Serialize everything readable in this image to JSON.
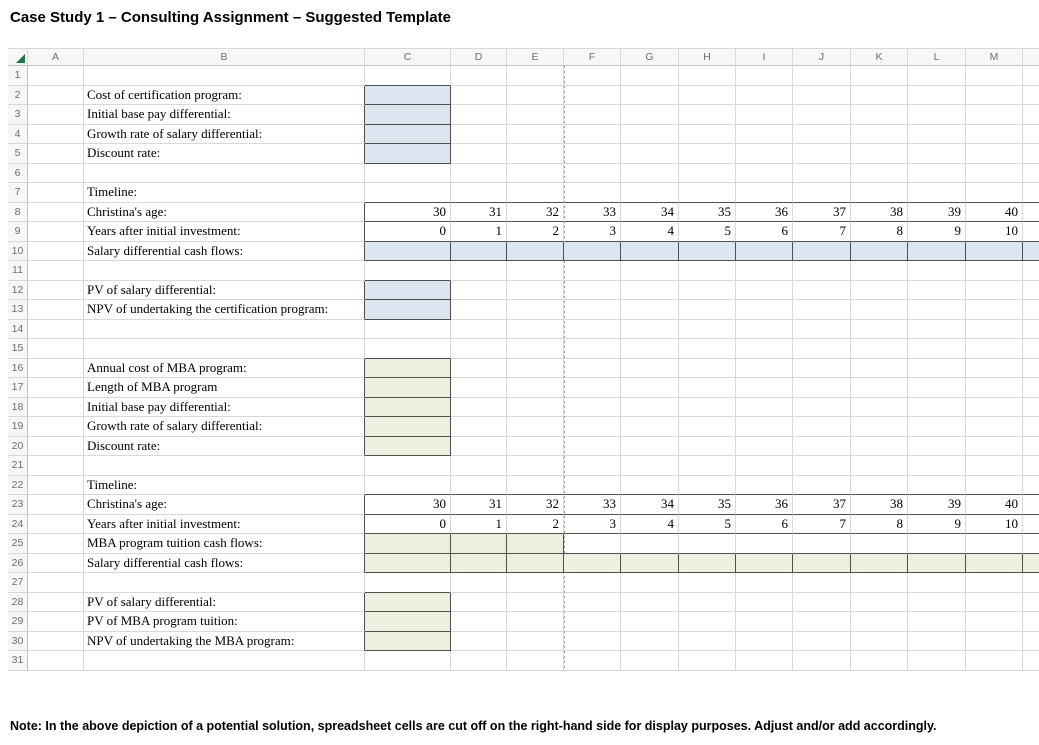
{
  "title": "Case Study 1 – Consulting Assignment – Suggested Template",
  "footnote": "Note: In the above depiction of a potential solution, spreadsheet cells are cut off on the right-hand side for display purposes. Adjust and/or add accordingly.",
  "colors": {
    "blue_fill": "#dce6f1",
    "green_fill": "#ebf1de",
    "dark_border": "#4f4f4f",
    "gridline": "#d8d8d8",
    "header_text": "#6e6e6e",
    "select_all_green": "#217346",
    "page_break_gray": "#9a9a9a"
  },
  "sheet": {
    "column_headers": [
      "A",
      "B",
      "C",
      "D",
      "E",
      "F",
      "G",
      "H",
      "I",
      "J",
      "K",
      "L",
      "M"
    ],
    "rows": [
      {
        "n": 1,
        "cells": {
          "C": {
            "b": "b"
          }
        }
      },
      {
        "n": 2,
        "label": "Cost of certification program:",
        "cells": {
          "B": {
            "b": "r"
          },
          "C": {
            "f": "blue",
            "b": "rb"
          }
        }
      },
      {
        "n": 3,
        "label": "Initial base pay differential:",
        "cells": {
          "B": {
            "b": "r"
          },
          "C": {
            "f": "blue",
            "b": "rb"
          }
        }
      },
      {
        "n": 4,
        "label": "Growth rate of salary differential:",
        "cells": {
          "B": {
            "b": "r"
          },
          "C": {
            "f": "blue",
            "b": "rb"
          }
        }
      },
      {
        "n": 5,
        "label": "Discount rate:",
        "cells": {
          "B": {
            "b": "r"
          },
          "C": {
            "f": "blue",
            "b": "rb"
          }
        }
      },
      {
        "n": 6
      },
      {
        "n": 7,
        "label": "Timeline:",
        "cells": {
          "C": {
            "b": "b"
          },
          "D": {
            "b": "b"
          },
          "E": {
            "b": "b"
          },
          "F": {
            "b": "b"
          },
          "G": {
            "b": "b"
          },
          "H": {
            "b": "b"
          },
          "I": {
            "b": "b"
          },
          "J": {
            "b": "b"
          },
          "K": {
            "b": "b"
          },
          "L": {
            "b": "b"
          },
          "M": {
            "b": "b"
          },
          "N": {
            "b": "b"
          }
        }
      },
      {
        "n": 8,
        "label": "Christina's age:",
        "cells": {
          "B": {
            "b": "r"
          },
          "C": {
            "v": "30",
            "b": "b"
          },
          "D": {
            "v": "31",
            "b": "b"
          },
          "E": {
            "v": "32",
            "b": "b"
          },
          "F": {
            "v": "33",
            "b": "b"
          },
          "G": {
            "v": "34",
            "b": "b"
          },
          "H": {
            "v": "35",
            "b": "b"
          },
          "I": {
            "v": "36",
            "b": "b"
          },
          "J": {
            "v": "37",
            "b": "b"
          },
          "K": {
            "v": "38",
            "b": "b"
          },
          "L": {
            "v": "39",
            "b": "b"
          },
          "M": {
            "v": "40",
            "b": "b"
          },
          "N": {
            "b": "b"
          }
        }
      },
      {
        "n": 9,
        "label": "Years after initial investment:",
        "cells": {
          "B": {
            "b": "r"
          },
          "C": {
            "v": "0",
            "b": "b"
          },
          "D": {
            "v": "1",
            "b": "b"
          },
          "E": {
            "v": "2",
            "b": "b"
          },
          "F": {
            "v": "3",
            "b": "b"
          },
          "G": {
            "v": "4",
            "b": "b"
          },
          "H": {
            "v": "5",
            "b": "b"
          },
          "I": {
            "v": "6",
            "b": "b"
          },
          "J": {
            "v": "7",
            "b": "b"
          },
          "K": {
            "v": "8",
            "b": "b"
          },
          "L": {
            "v": "9",
            "b": "b"
          },
          "M": {
            "v": "10",
            "b": "b"
          },
          "N": {
            "b": "b"
          }
        }
      },
      {
        "n": 10,
        "label": "Salary differential cash flows:",
        "cells": {
          "B": {
            "b": "r"
          },
          "C": {
            "f": "blue",
            "b": "rb"
          },
          "D": {
            "f": "blue",
            "b": "rb"
          },
          "E": {
            "f": "blue",
            "b": "rb"
          },
          "F": {
            "f": "blue",
            "b": "rb"
          },
          "G": {
            "f": "blue",
            "b": "rb"
          },
          "H": {
            "f": "blue",
            "b": "rb"
          },
          "I": {
            "f": "blue",
            "b": "rb"
          },
          "J": {
            "f": "blue",
            "b": "rb"
          },
          "K": {
            "f": "blue",
            "b": "rb"
          },
          "L": {
            "f": "blue",
            "b": "rb"
          },
          "M": {
            "f": "blue",
            "b": "rb"
          },
          "N": {
            "f": "blue",
            "b": "rb"
          }
        }
      },
      {
        "n": 11,
        "cells": {
          "C": {
            "b": "b"
          }
        }
      },
      {
        "n": 12,
        "label": "PV of salary differential:",
        "cells": {
          "B": {
            "b": "r"
          },
          "C": {
            "f": "blue",
            "b": "rb"
          }
        }
      },
      {
        "n": 13,
        "label": "NPV of undertaking the certification program:",
        "cells": {
          "B": {
            "b": "r"
          },
          "C": {
            "f": "blue",
            "b": "rb"
          }
        }
      },
      {
        "n": 14
      },
      {
        "n": 15,
        "cells": {
          "C": {
            "b": "b"
          }
        }
      },
      {
        "n": 16,
        "label": "Annual cost of MBA program:",
        "cells": {
          "B": {
            "b": "r"
          },
          "C": {
            "f": "green",
            "b": "rb"
          }
        }
      },
      {
        "n": 17,
        "label": "Length of MBA program",
        "cells": {
          "B": {
            "b": "r"
          },
          "C": {
            "f": "green",
            "b": "rb"
          }
        }
      },
      {
        "n": 18,
        "label": "Initial base pay differential:",
        "cells": {
          "B": {
            "b": "r"
          },
          "C": {
            "f": "green",
            "b": "rb"
          }
        }
      },
      {
        "n": 19,
        "label": "Growth rate of salary differential:",
        "cells": {
          "B": {
            "b": "r"
          },
          "C": {
            "f": "green",
            "b": "rb"
          }
        }
      },
      {
        "n": 20,
        "label": "Discount rate:",
        "cells": {
          "B": {
            "b": "r"
          },
          "C": {
            "f": "green",
            "b": "rb"
          }
        }
      },
      {
        "n": 21
      },
      {
        "n": 22,
        "label": "Timeline:",
        "cells": {
          "C": {
            "b": "b"
          },
          "D": {
            "b": "b"
          },
          "E": {
            "b": "b"
          },
          "F": {
            "b": "b"
          },
          "G": {
            "b": "b"
          },
          "H": {
            "b": "b"
          },
          "I": {
            "b": "b"
          },
          "J": {
            "b": "b"
          },
          "K": {
            "b": "b"
          },
          "L": {
            "b": "b"
          },
          "M": {
            "b": "b"
          },
          "N": {
            "b": "b"
          }
        }
      },
      {
        "n": 23,
        "label": "Christina's age:",
        "cells": {
          "B": {
            "b": "r"
          },
          "C": {
            "v": "30",
            "b": "b"
          },
          "D": {
            "v": "31",
            "b": "b"
          },
          "E": {
            "v": "32",
            "b": "b"
          },
          "F": {
            "v": "33",
            "b": "b"
          },
          "G": {
            "v": "34",
            "b": "b"
          },
          "H": {
            "v": "35",
            "b": "b"
          },
          "I": {
            "v": "36",
            "b": "b"
          },
          "J": {
            "v": "37",
            "b": "b"
          },
          "K": {
            "v": "38",
            "b": "b"
          },
          "L": {
            "v": "39",
            "b": "b"
          },
          "M": {
            "v": "40",
            "b": "b"
          },
          "N": {
            "b": "b"
          }
        }
      },
      {
        "n": 24,
        "label": "Years after initial investment:",
        "cells": {
          "B": {
            "b": "r"
          },
          "C": {
            "v": "0",
            "b": "b"
          },
          "D": {
            "v": "1",
            "b": "b"
          },
          "E": {
            "v": "2",
            "b": "b"
          },
          "F": {
            "v": "3",
            "b": "b"
          },
          "G": {
            "v": "4",
            "b": "b"
          },
          "H": {
            "v": "5",
            "b": "b"
          },
          "I": {
            "v": "6",
            "b": "b"
          },
          "J": {
            "v": "7",
            "b": "b"
          },
          "K": {
            "v": "8",
            "b": "b"
          },
          "L": {
            "v": "9",
            "b": "b"
          },
          "M": {
            "v": "10",
            "b": "b"
          },
          "N": {
            "b": "b"
          }
        }
      },
      {
        "n": 25,
        "label": "MBA program tuition cash flows:",
        "cells": {
          "B": {
            "b": "r"
          },
          "C": {
            "f": "green",
            "b": "rb"
          },
          "D": {
            "f": "green",
            "b": "rb"
          },
          "E": {
            "f": "green",
            "b": "rb"
          },
          "F": {
            "b": "b"
          },
          "G": {
            "b": "b"
          },
          "H": {
            "b": "b"
          },
          "I": {
            "b": "b"
          },
          "J": {
            "b": "b"
          },
          "K": {
            "b": "b"
          },
          "L": {
            "b": "b"
          },
          "M": {
            "b": "b"
          },
          "N": {
            "b": "b"
          }
        }
      },
      {
        "n": 26,
        "label": "Salary differential cash flows:",
        "cells": {
          "B": {
            "b": "r"
          },
          "C": {
            "f": "green",
            "b": "rb"
          },
          "D": {
            "f": "green",
            "b": "rb"
          },
          "E": {
            "f": "green",
            "b": "rb"
          },
          "F": {
            "f": "green",
            "b": "rb"
          },
          "G": {
            "f": "green",
            "b": "rb"
          },
          "H": {
            "f": "green",
            "b": "rb"
          },
          "I": {
            "f": "green",
            "b": "rb"
          },
          "J": {
            "f": "green",
            "b": "rb"
          },
          "K": {
            "f": "green",
            "b": "rb"
          },
          "L": {
            "f": "green",
            "b": "rb"
          },
          "M": {
            "f": "green",
            "b": "rb"
          },
          "N": {
            "f": "green",
            "b": "rb"
          }
        }
      },
      {
        "n": 27,
        "cells": {
          "C": {
            "b": "b"
          }
        }
      },
      {
        "n": 28,
        "label": "PV of salary differential:",
        "cells": {
          "B": {
            "b": "r"
          },
          "C": {
            "f": "green",
            "b": "rb"
          }
        }
      },
      {
        "n": 29,
        "label": "PV of MBA program tuition:",
        "cells": {
          "B": {
            "b": "r"
          },
          "C": {
            "f": "green",
            "b": "rb"
          }
        }
      },
      {
        "n": 30,
        "label": "NPV of undertaking the MBA program:",
        "cells": {
          "B": {
            "b": "r"
          },
          "C": {
            "f": "green",
            "b": "rb"
          }
        }
      },
      {
        "n": 31
      }
    ]
  }
}
